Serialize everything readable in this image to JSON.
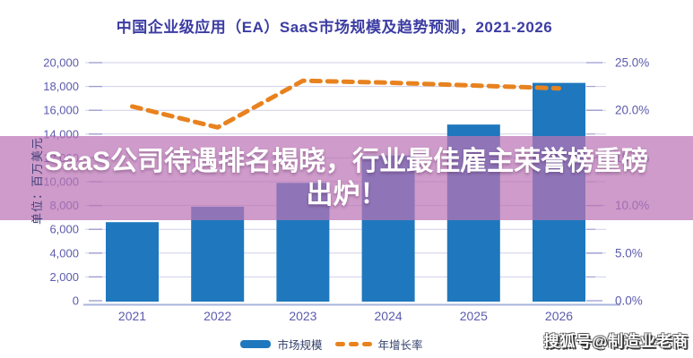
{
  "header": {
    "title": "中国企业级应用（EA）SaaS市场规模及趋势预测，2021-2026"
  },
  "overlay": {
    "headline_line1": "SaaS公司待遇排名揭晓，行业最佳雇主荣誉榜重磅",
    "headline_line2": "出炉！"
  },
  "watermark": {
    "text": "搜狐号@制造业老商"
  },
  "legend": {
    "market_size_label": "市场规模",
    "growth_rate_label": "年增长率"
  },
  "chart_data": {
    "type": "combo",
    "title": "中国企业级应用（EA）SaaS市场规模及趋势预测，2021-2026",
    "categories": [
      "2021",
      "2022",
      "2023",
      "2024",
      "2025",
      "2026"
    ],
    "series": [
      {
        "name": "市场规模",
        "type": "bar",
        "axis": "left",
        "unit": "百万美元",
        "values": [
          6600,
          7900,
          9900,
          12200,
          14800,
          18300
        ]
      },
      {
        "name": "年增长率",
        "type": "line",
        "line_style": "dashed",
        "axis": "right",
        "unit": "%",
        "values": [
          20.4,
          18.2,
          23.1,
          22.9,
          22.6,
          22.3
        ]
      }
    ],
    "left_axis": {
      "label": "单位：百万美元",
      "min": 0,
      "max": 20000,
      "step": 2000
    },
    "right_axis": {
      "min": 0,
      "max": 25,
      "step": 5,
      "minor_step": 2.5,
      "suffix": "%"
    },
    "grid": true,
    "legend_position": "bottom"
  },
  "colors": {
    "bar": "#1f78bd",
    "line": "#e8821f",
    "title_text": "#3c3ca3",
    "axis_label": "#5b5bad",
    "tick": "#9a9ad0",
    "gridline": "#cfcfe9",
    "axis_line": "#aab4de",
    "legend_text": "#33406b",
    "overlay_band": "rgba(187,117,181,0.72)",
    "headline_text": "#ffffff"
  }
}
